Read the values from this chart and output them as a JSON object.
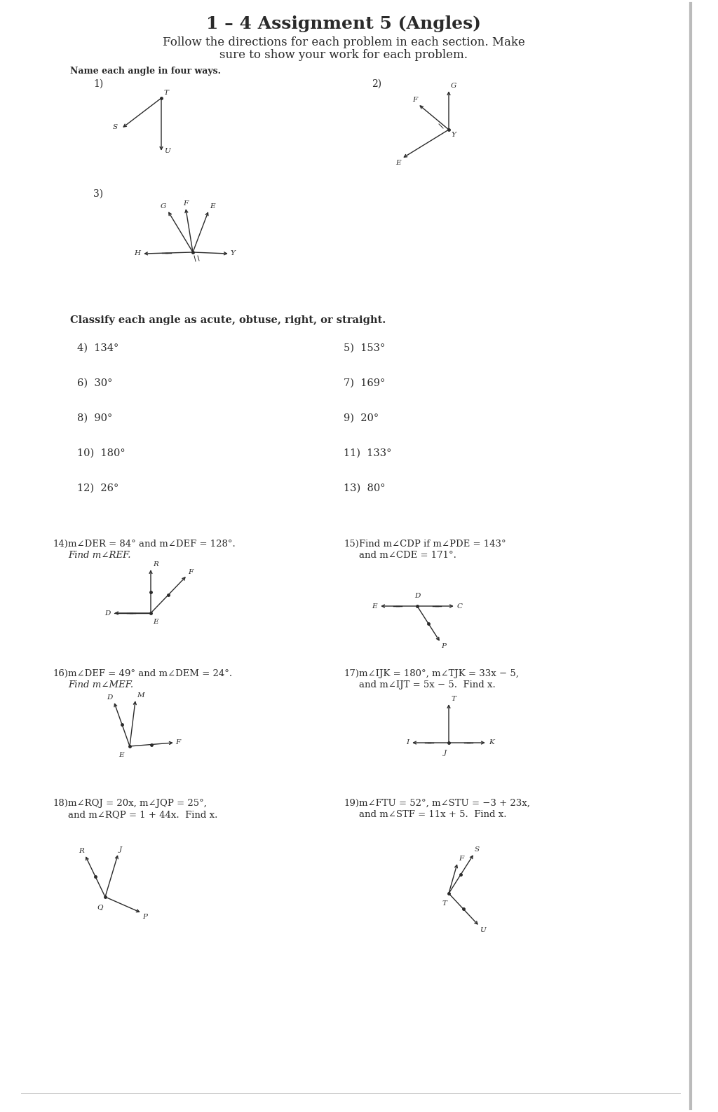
{
  "title": "1 – 4 Assignment 5 (Angles)",
  "subtitle_line1": "Follow the directions for each problem in each section. Make",
  "subtitle_line2": "sure to show your work for each problem.",
  "section1_label": "Name each angle in four ways.",
  "classify_label": "Classify each angle as acute, obtuse, right, or straight.",
  "classify_left": [
    [
      "4)",
      "134°",
      490
    ],
    [
      "6)",
      "30°",
      540
    ],
    [
      "8)",
      "90°",
      590
    ],
    [
      "10)",
      "180°",
      640
    ],
    [
      "12)",
      "26°",
      690
    ]
  ],
  "classify_right": [
    [
      "5)",
      "153°",
      490
    ],
    [
      "7)",
      "169°",
      540
    ],
    [
      "9)",
      "20°",
      590
    ],
    [
      "11)",
      "133°",
      640
    ],
    [
      "13)",
      "80°",
      690
    ]
  ],
  "bg_color": "#ffffff",
  "text_color": "#2a2a2a",
  "line_color": "#2a2a2a"
}
